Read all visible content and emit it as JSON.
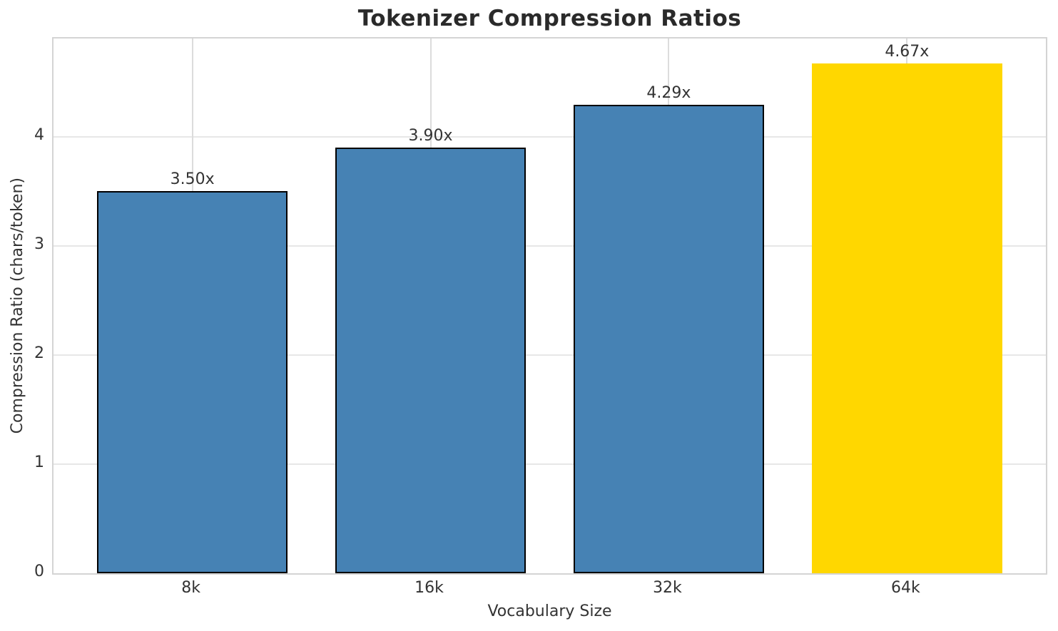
{
  "chart_data": {
    "type": "bar",
    "title": "Tokenizer Compression Ratios",
    "xlabel": "Vocabulary Size",
    "ylabel": "Compression Ratio (chars/token)",
    "categories": [
      "8k",
      "16k",
      "32k",
      "64k"
    ],
    "values": [
      3.5,
      3.9,
      4.29,
      4.67
    ],
    "bar_labels": [
      "3.50x",
      "3.90x",
      "4.29x",
      "4.67x"
    ],
    "bar_colors": [
      "#4682B4",
      "#4682B4",
      "#4682B4",
      "#FFD700"
    ],
    "bar_edge_colors": [
      "#000000",
      "#000000",
      "#000000",
      "#FFD700"
    ],
    "yticks": [
      0,
      1,
      2,
      3,
      4
    ],
    "ylim": [
      0,
      4.9
    ],
    "xlim": [
      -0.583,
      3.583
    ],
    "bar_width": 0.8,
    "grid": true,
    "legend_position": "none"
  }
}
